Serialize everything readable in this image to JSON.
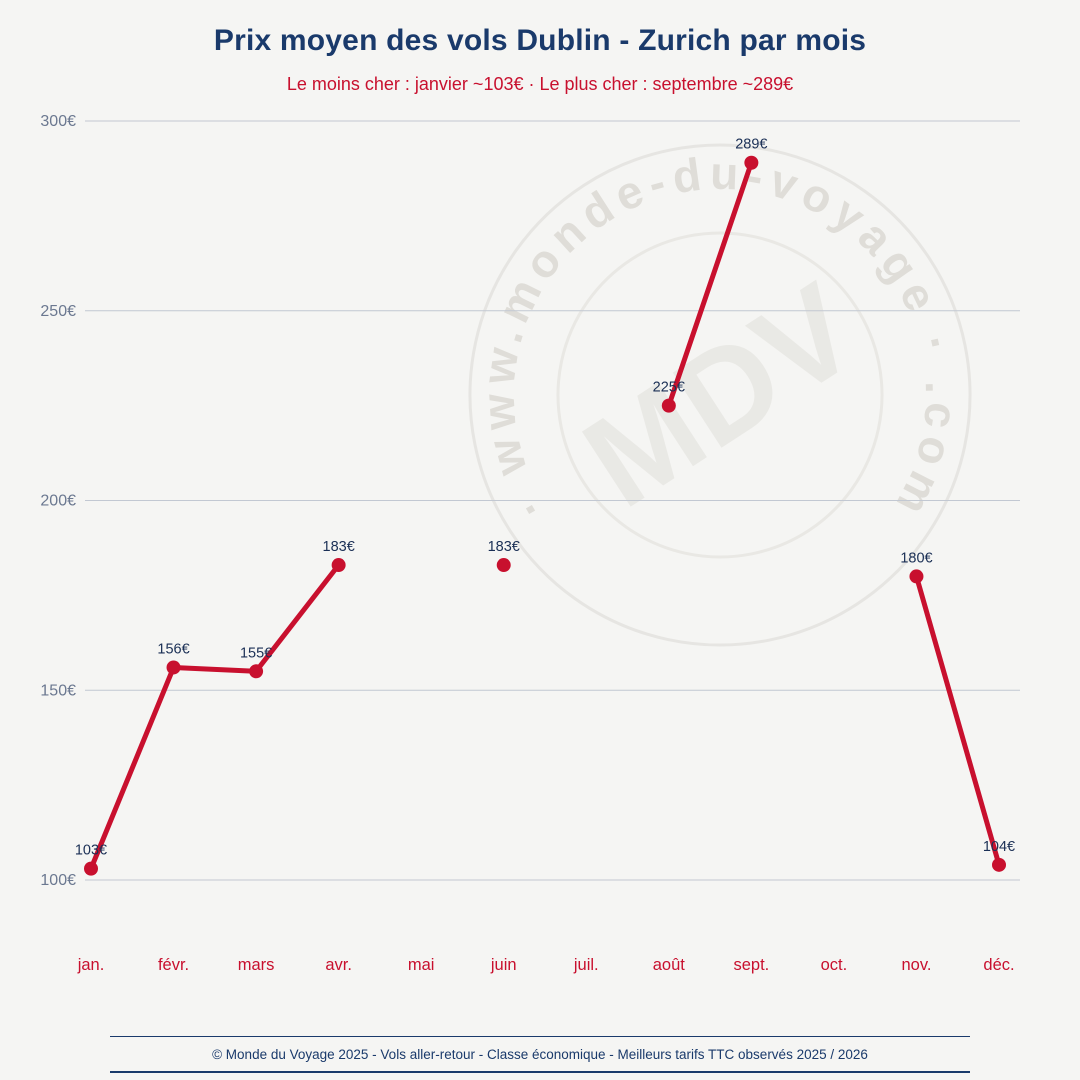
{
  "title": "Prix moyen des vols Dublin - Zurich par mois",
  "subtitle": "Le moins cher : janvier ~103€ · Le plus cher : septembre ~289€",
  "watermark": {
    "circle_text": "· www.monde-du-voyage · .com ",
    "center_text": "MDV"
  },
  "footer": {
    "text": "© Monde du Voyage 2025 - Vols aller-retour - Classe économique - Meilleurs tarifs TTC observés 2025 / 2026"
  },
  "colors": {
    "title": "#1a3a6b",
    "accent_red": "#c8102e",
    "line": "#c8102e",
    "grid": "#c2c8d2",
    "axis_label": "#6b7890",
    "point_label": "#1a2f55",
    "watermark": "#a8a294",
    "background": "#f5f5f3"
  },
  "chart_data": {
    "type": "line",
    "title": "Prix moyen des vols Dublin - Zurich par mois",
    "categories": [
      "jan.",
      "févr.",
      "mars",
      "avr.",
      "mai",
      "juin",
      "juil.",
      "août",
      "sept.",
      "oct.",
      "nov.",
      "déc."
    ],
    "values": [
      103,
      156,
      155,
      183,
      null,
      183,
      null,
      225,
      289,
      null,
      180,
      104
    ],
    "unit": "€",
    "ylim": [
      100,
      300
    ],
    "yticks": [
      100,
      150,
      200,
      250,
      300
    ],
    "grid": true,
    "legend": "none",
    "xlabel": "",
    "ylabel": ""
  }
}
